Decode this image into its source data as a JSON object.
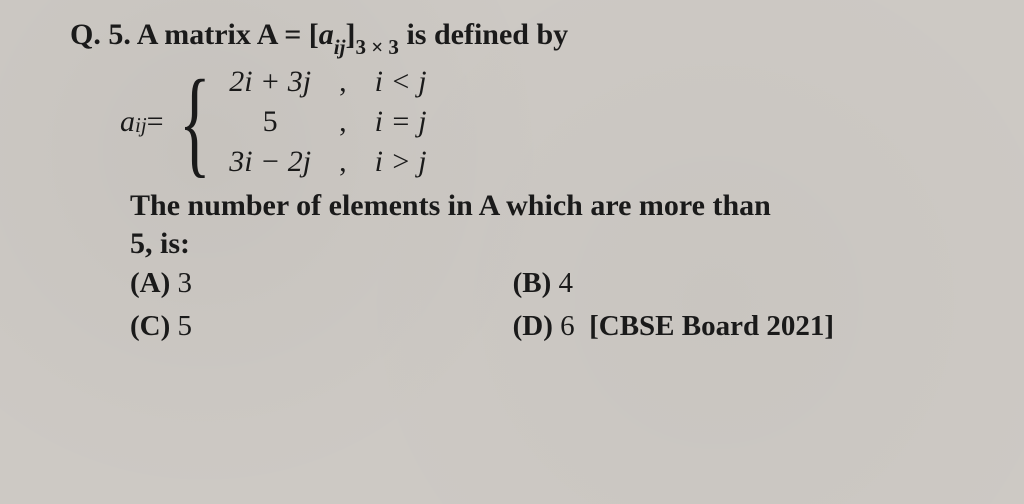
{
  "question": {
    "label": "Q. 5.",
    "stem_prefix": "A matrix A = [",
    "a_sym": "a",
    "ij": "ij",
    "stem_mid": "]",
    "dims": "3 × 3",
    "stem_suffix": " is defined by",
    "lhs_a": "a",
    "lhs_ij": "ij",
    "eq": " = ",
    "cases": {
      "r1c1": "2i + 3j",
      "r1c2": ",",
      "r1c3": "i < j",
      "r2c1": "5",
      "r2c2": ",",
      "r2c3": "i = j",
      "r3c1": "3i − 2j",
      "r3c2": ",",
      "r3c3": "i > j"
    },
    "statement_line1": "The number of elements in A which are more than",
    "statement_line2": "5, is:"
  },
  "options": {
    "A": {
      "label": "(A)",
      "text": "3"
    },
    "B": {
      "label": "(B)",
      "text": "4"
    },
    "C": {
      "label": "(C)",
      "text": "5"
    },
    "D": {
      "label": "(D)",
      "text": "6",
      "source": "[CBSE Board 2021]"
    }
  },
  "colors": {
    "background": "#cdc9c4",
    "text": "#1a1a1a"
  },
  "typography": {
    "base_fontsize_pt": 22,
    "family": "Georgia / Times",
    "weight_heading": "bold"
  }
}
